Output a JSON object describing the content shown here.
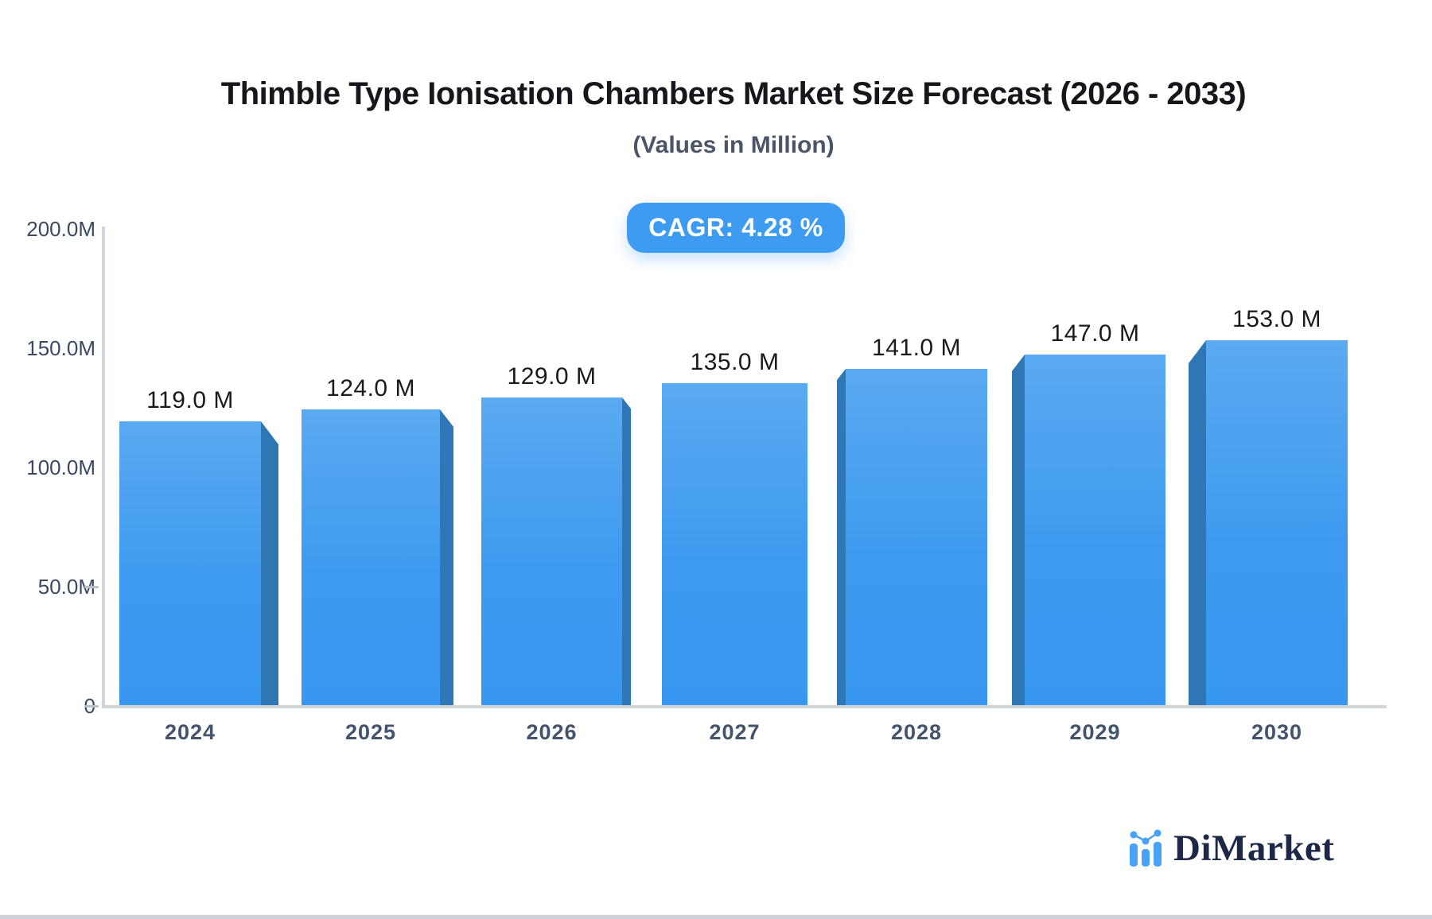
{
  "header": {
    "title": "Thimble Type Ionisation Chambers Market Size Forecast (2026 - 2033)",
    "subtitle": "(Values in Million)",
    "cagr_badge": "CAGR: 4.28 %"
  },
  "chart_data": {
    "type": "bar",
    "title": "Thimble Type Ionisation Chambers Market Size Forecast (2026 - 2033)",
    "subtitle": "(Values in Million)",
    "unit": "Million",
    "cagr": "4.28 %",
    "categories": [
      "2024",
      "2025",
      "2026",
      "2027",
      "2028",
      "2029",
      "2030"
    ],
    "values": [
      119.0,
      124.0,
      129.0,
      135.0,
      141.0,
      147.0,
      153.0
    ],
    "value_labels": [
      "119.0 M",
      "124.0 M",
      "129.0 M",
      "135.0 M",
      "141.0 M",
      "147.0 M",
      "153.0 M"
    ],
    "ylim": [
      0,
      200
    ],
    "y_ticks": [
      {
        "label": "200.0M",
        "value": 200,
        "dash": false
      },
      {
        "label": "150.0M",
        "value": 150,
        "dash": false
      },
      {
        "label": "100.0M",
        "value": 100,
        "dash": false
      },
      {
        "label": "50.0M",
        "value": 50,
        "dash": true
      },
      {
        "label": "0",
        "value": 0,
        "dash": true
      }
    ],
    "grid": false,
    "legend": false,
    "bar_style": "3d-perspective"
  },
  "branding": {
    "logo_text": "DiMarket",
    "logo_icon": "bar-chart-icon"
  },
  "colors": {
    "bar_top": "#5aaaf1",
    "bar_mid": "#3e9af0",
    "bar_bottom": "#3897f0",
    "bar_side": "#2e77b4",
    "badge_bg": "#3e9bf2",
    "axis_line": "#d2d6dc",
    "axis_text": "#394a63",
    "value_text": "#191a1d",
    "category_text": "#43536b",
    "logo_navy": "#1d2746",
    "logo_blue": "#4aa2f6"
  }
}
